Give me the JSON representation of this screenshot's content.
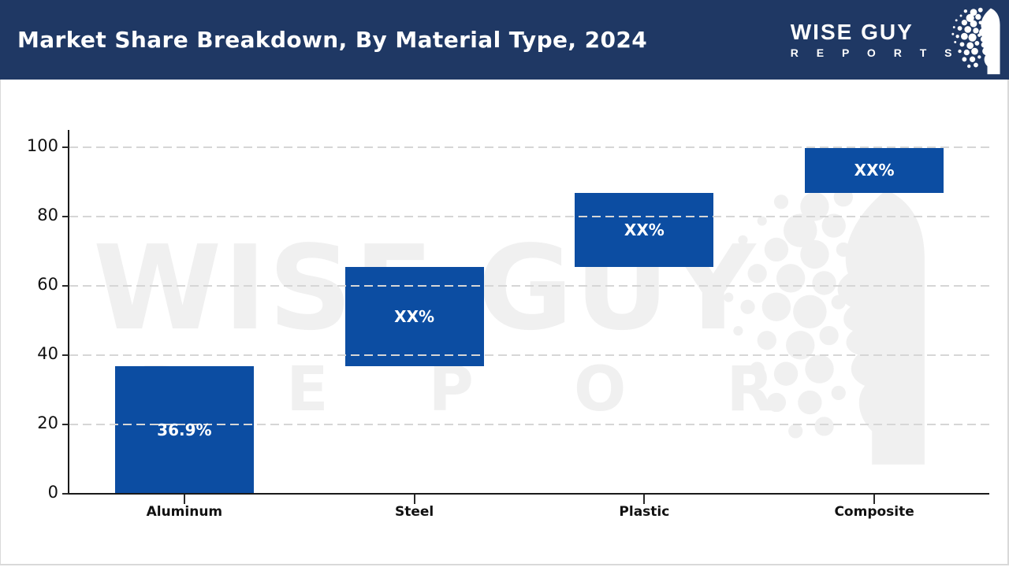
{
  "header": {
    "title": "Market Share Breakdown, By Material Type, 2024",
    "bg_color": "#1f3864",
    "logo": {
      "line1": "WISE GUY",
      "line2": "R E P O R T S"
    }
  },
  "watermark": {
    "line1": "WISE GUY",
    "line2": "R E P O R T S",
    "color": "#f0f0f0"
  },
  "chart_data": {
    "type": "bar",
    "subtype": "waterfall-floating-bars",
    "title": "",
    "xlabel": "",
    "ylabel": "",
    "categories": [
      "Aluminum",
      "Steel",
      "Plastic",
      "Composite"
    ],
    "segments": [
      {
        "category": "Aluminum",
        "start": 0,
        "end": 36.9,
        "label": "36.9%"
      },
      {
        "category": "Steel",
        "start": 36.9,
        "end": 65.5,
        "label": "XX%"
      },
      {
        "category": "Plastic",
        "start": 65.5,
        "end": 86.9,
        "label": "XX%"
      },
      {
        "category": "Composite",
        "start": 86.9,
        "end": 99.8,
        "label": "XX%"
      }
    ],
    "yticks": [
      0,
      20,
      40,
      60,
      80,
      100
    ],
    "ylim": [
      0,
      105
    ],
    "grid": true,
    "grid_style": "dashed",
    "grid_position": "above-bars",
    "legend": "none",
    "bar_color": "#0c4da2",
    "bar_label_color": "#ffffff",
    "axis_color": "#1a1a1a",
    "grid_color": "#d6d6d6"
  }
}
